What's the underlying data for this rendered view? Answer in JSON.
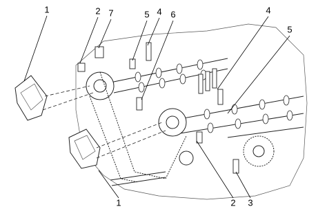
{
  "callouts": [
    {
      "label": "1"
    },
    {
      "label": "2"
    },
    {
      "label": "7"
    },
    {
      "label": "5"
    },
    {
      "label": "4"
    },
    {
      "label": "6"
    },
    {
      "label": "4"
    },
    {
      "label": "5"
    },
    {
      "label": "1"
    },
    {
      "label": "2"
    },
    {
      "label": "3"
    }
  ]
}
